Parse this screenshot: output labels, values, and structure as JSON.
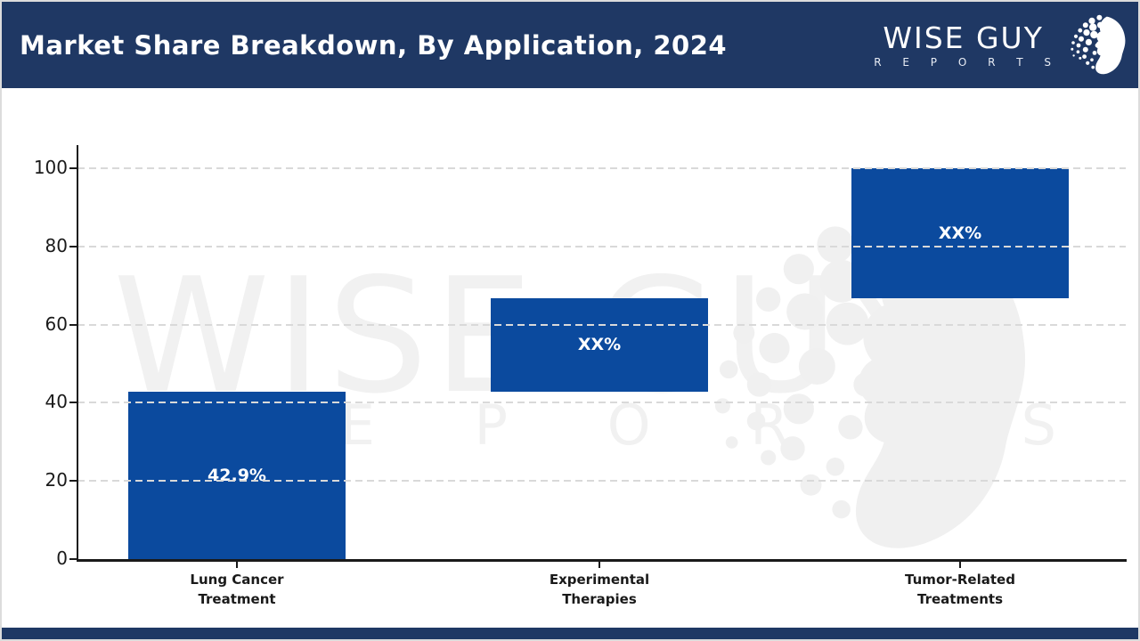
{
  "header": {
    "title": "Market Share Breakdown, By Application, 2024",
    "logo": {
      "word": "WISE GUY",
      "sub": "R E P O R T S"
    }
  },
  "watermark": {
    "line1": "WISE GUY",
    "line2": "R E P O R T S"
  },
  "colors": {
    "header_bg": "#1f3864",
    "footer_bg": "#1f3864",
    "bar_blue": "#0b4a9e",
    "bar_label": "#ffffff",
    "watermark_gray": "#f1f1f1",
    "gridline_gray": "#d9d9d9",
    "axis_black": "#1a1a1a"
  },
  "chart_data": {
    "type": "bar",
    "variant": "floating-waterfall",
    "title": "Market Share Breakdown, By Application, 2024",
    "categories": [
      "Lung Cancer Treatment",
      "Experimental Therapies",
      "Tumor-Related Treatments"
    ],
    "categories_wrapped": [
      [
        "Lung Cancer",
        "Treatment"
      ],
      [
        "Experimental",
        "Therapies"
      ],
      [
        "Tumor-Related",
        "Treatments"
      ]
    ],
    "segments": [
      {
        "category": "Lung Cancer Treatment",
        "start": 0,
        "end": 42.9,
        "label": "42.9%"
      },
      {
        "category": "Experimental Therapies",
        "start": 42.9,
        "end": 66.7,
        "label": "XX%"
      },
      {
        "category": "Tumor-Related Treatments",
        "start": 66.7,
        "end": 100,
        "label": "XX%"
      }
    ],
    "ylabel": "",
    "xlabel": "",
    "yticks": [
      0,
      20,
      40,
      60,
      80,
      100
    ],
    "ylim": [
      0,
      105
    ],
    "grid": "horizontal-dashed",
    "legend": "none",
    "bar_color": "#0b4a9e",
    "bar_label_color": "#ffffff"
  }
}
